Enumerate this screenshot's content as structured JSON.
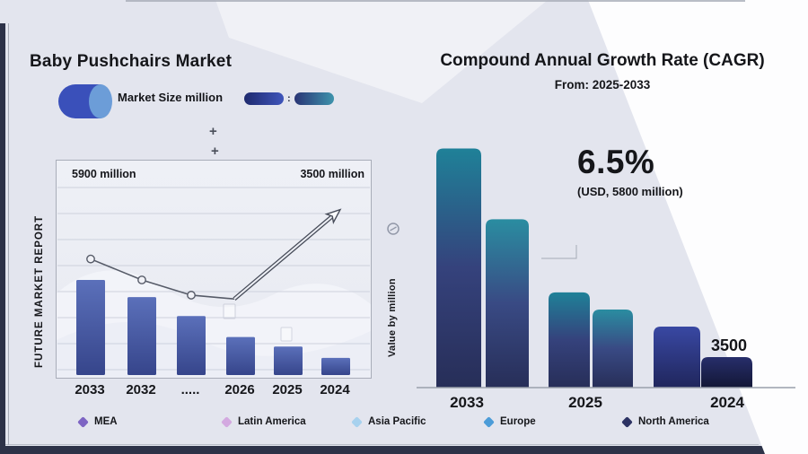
{
  "theme": {
    "background": "#e3e5ee",
    "edge_navy": "#2d3248",
    "text": "#15161a",
    "panel_white": "#fdfdfe"
  },
  "header_left": {
    "title": "Baby Pushchairs Market",
    "market_size_label": "Market Size million",
    "ratio_separator": ":"
  },
  "accents": {
    "capsule_body": "#3a50ba",
    "capsule_cap": "#6c9dd8",
    "pill1": [
      "#1f2a6e",
      "#3f55bb"
    ],
    "pill2": [
      "#2a3575",
      "#3e93ac"
    ]
  },
  "decorations": {
    "plus_top": "+",
    "plus_bottom": "+"
  },
  "watermark": {
    "left_vertical": "FUTURE MARKET REPORT",
    "divider_vertical": "Value by million"
  },
  "header_right": {
    "title": "Compound Annual Growth Rate (CAGR)",
    "subtitle": "From: 2025-2033"
  },
  "cagr": {
    "value": "6.5%",
    "note": "(USD, 5800 million)"
  },
  "legend": [
    {
      "label": "MEA",
      "color": "#7d64c3"
    },
    {
      "label": "Latin America",
      "color": "#d3a9e0"
    },
    {
      "label": "Asia Pacific",
      "color": "#a7d1ee"
    },
    {
      "label": "Europe",
      "color": "#4c9cd8"
    },
    {
      "label": "North America",
      "color": "#2c3263"
    }
  ],
  "chart_data": [
    {
      "id": "market-size-by-year",
      "type": "bar",
      "title": "Market Size million",
      "categories": [
        "2033",
        "2032",
        ".....",
        "2026",
        "2025",
        "2024"
      ],
      "values_relative": [
        0.5,
        0.41,
        0.31,
        0.2,
        0.15,
        0.09
      ],
      "annotations": {
        "top_left": "5900 million",
        "top_right": "3500 million"
      },
      "trend_line": {
        "points_relative": [
          0.61,
          0.5,
          0.42,
          0.4
        ],
        "markers": 3,
        "arrow_tip_relative": 0.87,
        "note": "line declines from 2033 toward 2026 then an outlined arrow rises to top-right"
      },
      "bar_gradient": [
        "#5b70ba",
        "#36458b"
      ],
      "grid": true,
      "gridlines": 8
    },
    {
      "id": "cagr-projection",
      "type": "grouped-bar",
      "categories": [
        "2033",
        "2025",
        "2024"
      ],
      "pairs_relative": [
        [
          0.98,
          0.69
        ],
        [
          0.39,
          0.32
        ],
        [
          0.25,
          0.125
        ]
      ],
      "value_labels": [
        {
          "text": "3500",
          "category": "2024"
        }
      ],
      "ylabel": "Value by million",
      "gradients": {
        "teal": [
          "#1f8198",
          "#35427c",
          "#272e58"
        ],
        "tealB": [
          "#2a8da1",
          "#394a84",
          "#272e58"
        ],
        "blue": [
          "#3948a3",
          "#20265c"
        ],
        "dark": [
          "#272e6b",
          "#131736"
        ]
      },
      "legend_position": "bottom",
      "grid": false
    }
  ]
}
